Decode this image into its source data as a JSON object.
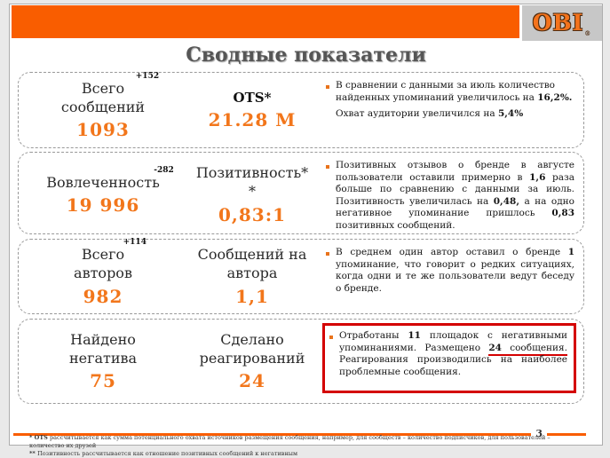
{
  "logo": {
    "text": "OBI",
    "reg": "®"
  },
  "title": "Сводные показатели",
  "page_number": "3",
  "colors": {
    "banner_orange": "#f95d00",
    "accent_orange": "#f2761b",
    "highlight_red": "#d40000",
    "logo_bg_gray": "#c7c7c7"
  },
  "rows": [
    {
      "metrics": [
        {
          "label_lines": [
            "Всего",
            "сообщений"
          ],
          "sup": "+152",
          "value": "1093",
          "bold_label": false
        },
        {
          "label_lines": [
            "OTS*"
          ],
          "sup": "",
          "value": "21.28 M",
          "bold_label": true
        }
      ],
      "note": {
        "justify": false,
        "highlight": false,
        "paragraphs": [
          [
            {
              "t": "В сравнении с данными за июль количество найденных упоминаний увеличилось на "
            },
            {
              "t": "16,2%.",
              "b": true
            }
          ],
          [
            {
              "t": "Охват аудитории увеличился на "
            },
            {
              "t": "5,4%",
              "b": true
            }
          ]
        ]
      }
    },
    {
      "metrics": [
        {
          "label_lines": [
            "Вовлеченность"
          ],
          "sup": "-282",
          "value": "19 996",
          "bold_label": false
        },
        {
          "label_lines": [
            "Позитивность*",
            "*"
          ],
          "sup": "",
          "value": "0,83:1",
          "bold_label": false
        }
      ],
      "note": {
        "justify": true,
        "highlight": false,
        "paragraphs": [
          [
            {
              "t": "Позитивных отзывов о бренде в августе пользователи оставили примерно в "
            },
            {
              "t": "1,6",
              "b": true
            },
            {
              "t": " раза больше по сравнению с данными за июль. Позитивность увеличилась на "
            },
            {
              "t": "0,48,",
              "b": true
            },
            {
              "t": " а на одно негативное упоминание пришлось "
            },
            {
              "t": "0,83",
              "b": true
            },
            {
              "t": " позитивных сообщений."
            }
          ]
        ]
      }
    },
    {
      "metrics": [
        {
          "label_lines": [
            "Всего",
            "авторов"
          ],
          "sup": "+114",
          "value": "982",
          "bold_label": false
        },
        {
          "label_lines": [
            "Сообщений на",
            "автора"
          ],
          "sup": "",
          "value": "1,1",
          "bold_label": false
        }
      ],
      "note": {
        "justify": true,
        "highlight": false,
        "paragraphs": [
          [
            {
              "t": "В среднем один автор оставил о бренде "
            },
            {
              "t": "1",
              "b": true
            },
            {
              "t": " упоминание, что говорит о редких ситуациях, когда одни и те же пользователи ведут беседу о бренде."
            }
          ]
        ]
      }
    },
    {
      "metrics": [
        {
          "label_lines": [
            "Найдено",
            "негатива"
          ],
          "sup": "",
          "value": "75",
          "bold_label": false
        },
        {
          "label_lines": [
            "Сделано",
            "реагирований"
          ],
          "sup": "",
          "value": "24",
          "bold_label": false
        }
      ],
      "note": {
        "justify": true,
        "highlight": true,
        "paragraphs": [
          [
            {
              "t": "Отработаны "
            },
            {
              "t": "11",
              "b": true
            },
            {
              "t": " площадок с негативными упоминаниями. Размещено "
            },
            {
              "t": "24",
              "b": true,
              "u": true
            },
            {
              "t": " сообщения.",
              "u": true
            },
            {
              "t": " Реагирования производились на наиболее проблемные сообщения."
            }
          ]
        ]
      }
    }
  ],
  "footnotes": [
    {
      "segments": [
        {
          "t": "* ",
          "b": true
        },
        {
          "t": "OTS",
          "b": true
        },
        {
          "t": " рассчитывается как сумма потенциального охвата источников размещения сообщения, например, для сообществ – количество подписчиков, для пользователей – количество их друзей"
        }
      ]
    },
    {
      "segments": [
        {
          "t": "** ",
          "b": true
        },
        {
          "t": "Позитивность рассчитывается как отношение позитивных сообщений к негативным"
        }
      ]
    }
  ]
}
